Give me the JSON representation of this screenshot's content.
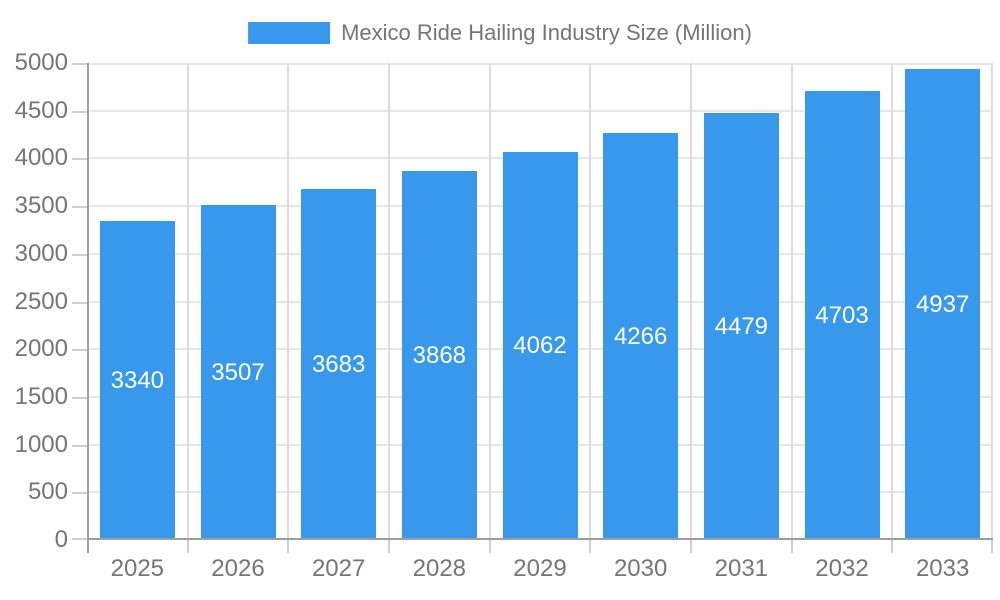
{
  "chart_data": {
    "type": "bar",
    "title": "Mexico Ride Hailing Industry Size (Million)",
    "legend": {
      "label": "Mexico Ride Hailing Industry Size (Million)",
      "position": "top"
    },
    "categories": [
      "2025",
      "2026",
      "2027",
      "2028",
      "2029",
      "2030",
      "2031",
      "2032",
      "2033"
    ],
    "series": [
      {
        "name": "Mexico Ride Hailing Industry Size (Million)",
        "values": [
          3340,
          3507,
          3683,
          3868,
          4062,
          4266,
          4479,
          4703,
          4937
        ]
      }
    ],
    "value_labels": [
      "3340",
      "3507",
      "3683",
      "3868",
      "4062",
      "4266",
      "4479",
      "4703",
      "4937"
    ],
    "xlabel": "",
    "ylabel": "",
    "ylim": [
      0,
      5000
    ],
    "ytick_step": 500,
    "yticks": [
      0,
      500,
      1000,
      1500,
      2000,
      2500,
      3000,
      3500,
      4000,
      4500,
      5000
    ],
    "grid": true,
    "legend_position": "top",
    "colors": {
      "bar": "#3899EC",
      "value_label": "#FFFFFF",
      "axis_label": "#757575",
      "legend_label": "#757575",
      "gridline_horizontal": "#E6E6E6",
      "gridline_vertical": "#DCDCDC",
      "axis_line": "#9E9E9E",
      "tick": "#CFCFCF",
      "background": "#FFFFFF"
    }
  }
}
